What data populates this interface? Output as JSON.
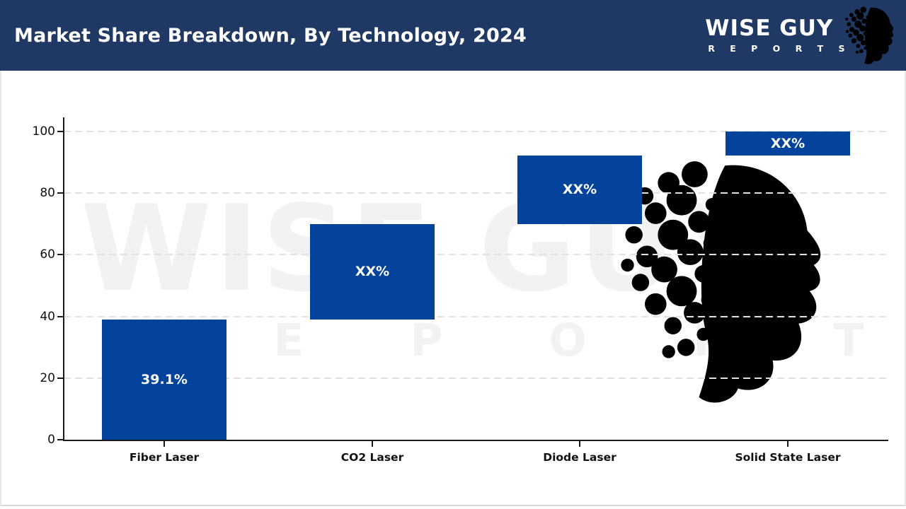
{
  "header": {
    "title": "Market Share Breakdown, By Technology, 2024",
    "logo": {
      "name": "WISE GUY",
      "subtitle": "R E P O R T S"
    }
  },
  "watermark": {
    "line1": "WISE GUY",
    "line2": "R E P O R T S"
  },
  "chart_data": {
    "type": "bar",
    "subtype": "floating-waterfall",
    "title": "Market Share Breakdown, By Technology, 2024",
    "categories": [
      "Fiber Laser",
      "CO2 Laser",
      "Diode Laser",
      "Solid State Laser"
    ],
    "series": [
      {
        "name": "Market share (%)",
        "segments": [
          {
            "category": "Fiber Laser",
            "start": 0,
            "end": 39.1,
            "label": "39.1%"
          },
          {
            "category": "CO2 Laser",
            "start": 39.1,
            "end": 70.0,
            "label": "XX%"
          },
          {
            "category": "Diode Laser",
            "start": 70.0,
            "end": 92.2,
            "label": "XX%"
          },
          {
            "category": "Solid State Laser",
            "start": 92.2,
            "end": 100.0,
            "label": "XX%"
          }
        ]
      }
    ],
    "ylim": [
      0,
      100
    ],
    "yticks": [
      0,
      20,
      40,
      60,
      80,
      100
    ],
    "grid": "horizontal-dashed",
    "legend": "none",
    "colors": {
      "bar": "#04439C",
      "bar_label": "#FFFFFF",
      "grid": "#E1E1E1",
      "axis": "#1A1A1A",
      "header_bg": "#1F3864",
      "watermark": "#F2F2F4"
    }
  }
}
